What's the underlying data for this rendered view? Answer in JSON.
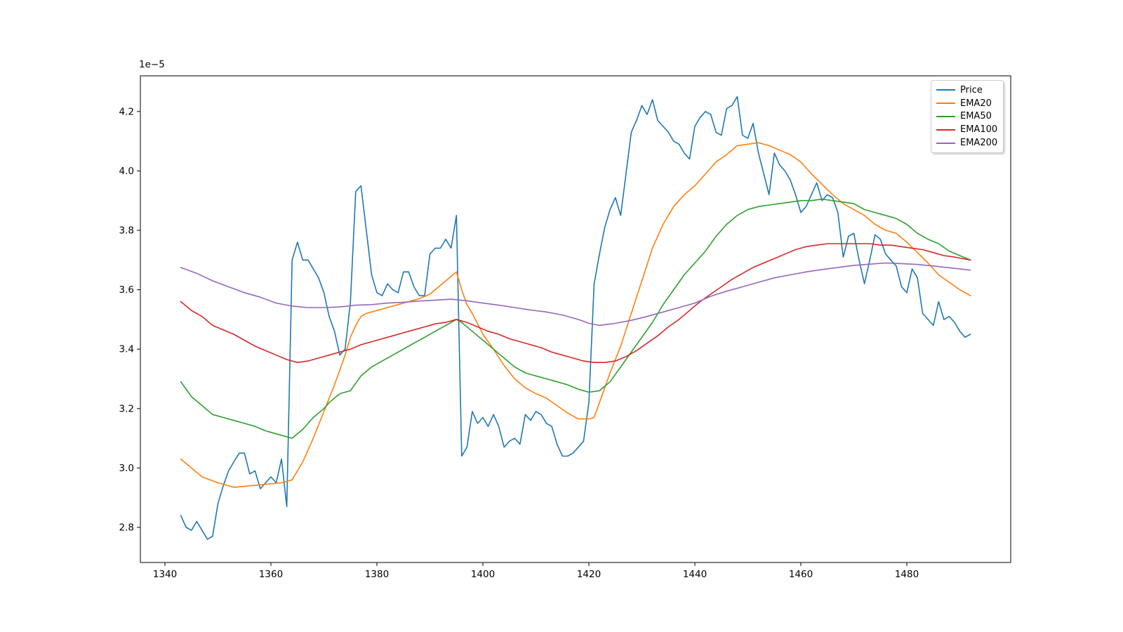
{
  "figure": {
    "background": "#ffffff"
  },
  "axes": {
    "offset_label": "1e−5",
    "x_ticks": [
      "1340",
      "1360",
      "1380",
      "1400",
      "1420",
      "1440",
      "1460",
      "1480"
    ],
    "x_tick_values": [
      1340,
      1360,
      1380,
      1400,
      1420,
      1440,
      1460,
      1480
    ],
    "y_ticks": [
      "2.8",
      "3.0",
      "3.2",
      "3.4",
      "3.6",
      "3.8",
      "4.0",
      "4.2"
    ],
    "y_tick_values": [
      2.8,
      3.0,
      3.2,
      3.4,
      3.6,
      3.8,
      4.0,
      4.2
    ]
  },
  "legend": {
    "entries": [
      {
        "label": "Price",
        "color": "#1f77b4"
      },
      {
        "label": "EMA20",
        "color": "#ff7f0e"
      },
      {
        "label": "EMA50",
        "color": "#2ca02c"
      },
      {
        "label": "EMA100",
        "color": "#d62728"
      },
      {
        "label": "EMA200",
        "color": "#9467bd"
      }
    ]
  },
  "chart_data": {
    "type": "line",
    "title": "",
    "xlabel": "",
    "ylabel": "",
    "y_unit_note": "values are in units of 1e-5 (axis offset label)",
    "xlim": [
      1335.5,
      1499.5
    ],
    "ylim": [
      2.69,
      4.32
    ],
    "grid": false,
    "legend_position": "upper right",
    "series": [
      {
        "name": "Price",
        "color": "#1f77b4",
        "x_start": 1343,
        "x_step": 1,
        "values": [
          2.84,
          2.8,
          2.79,
          2.82,
          2.79,
          2.76,
          2.77,
          2.88,
          2.94,
          2.99,
          3.02,
          3.05,
          3.05,
          2.98,
          2.99,
          2.93,
          2.95,
          2.97,
          2.95,
          3.03,
          2.87,
          3.7,
          3.76,
          3.7,
          3.7,
          3.67,
          3.64,
          3.59,
          3.51,
          3.46,
          3.38,
          3.4,
          3.56,
          3.93,
          3.95,
          3.8,
          3.65,
          3.59,
          3.58,
          3.62,
          3.6,
          3.59,
          3.66,
          3.66,
          3.61,
          3.58,
          3.58,
          3.72,
          3.74,
          3.74,
          3.77,
          3.74,
          3.85,
          3.04,
          3.07,
          3.19,
          3.15,
          3.17,
          3.14,
          3.18,
          3.14,
          3.07,
          3.09,
          3.1,
          3.08,
          3.18,
          3.16,
          3.19,
          3.18,
          3.15,
          3.14,
          3.08,
          3.04,
          3.04,
          3.05,
          3.07,
          3.09,
          3.22,
          3.62,
          3.72,
          3.81,
          3.87,
          3.91,
          3.85,
          3.99,
          4.13,
          4.17,
          4.22,
          4.19,
          4.24,
          4.17,
          4.15,
          4.13,
          4.1,
          4.09,
          4.06,
          4.04,
          4.15,
          4.18,
          4.2,
          4.19,
          4.13,
          4.12,
          4.21,
          4.22,
          4.25,
          4.12,
          4.11,
          4.16,
          4.06,
          3.99,
          3.92,
          4.06,
          4.02,
          4.0,
          3.97,
          3.92,
          3.86,
          3.88,
          3.92,
          3.96,
          3.9,
          3.92,
          3.91,
          3.86,
          3.71,
          3.78,
          3.79,
          3.7,
          3.62,
          3.7,
          3.785,
          3.77,
          3.72,
          3.7,
          3.68,
          3.61,
          3.59,
          3.67,
          3.64,
          3.52,
          3.5,
          3.48,
          3.56,
          3.5,
          3.51,
          3.49,
          3.46,
          3.44,
          3.45
        ]
      },
      {
        "name": "EMA20",
        "color": "#ff7f0e",
        "x": [
          1343,
          1345,
          1347,
          1350,
          1353,
          1356,
          1359,
          1362,
          1364,
          1366,
          1368,
          1370,
          1372,
          1374,
          1375,
          1376,
          1377,
          1378,
          1380,
          1382,
          1384,
          1386,
          1388,
          1390,
          1392,
          1394,
          1395,
          1396,
          1397,
          1398,
          1400,
          1402,
          1404,
          1406,
          1408,
          1410,
          1412,
          1414,
          1416,
          1418,
          1420,
          1421,
          1422,
          1424,
          1426,
          1428,
          1430,
          1432,
          1434,
          1436,
          1438,
          1440,
          1442,
          1444,
          1446,
          1448,
          1450,
          1452,
          1454,
          1456,
          1458,
          1460,
          1462,
          1464,
          1466,
          1468,
          1470,
          1472,
          1474,
          1476,
          1478,
          1480,
          1482,
          1484,
          1486,
          1488,
          1490,
          1492
        ],
        "values": [
          3.03,
          3.0,
          2.97,
          2.95,
          2.935,
          2.94,
          2.945,
          2.95,
          2.96,
          3.02,
          3.1,
          3.19,
          3.28,
          3.38,
          3.44,
          3.48,
          3.51,
          3.52,
          3.53,
          3.54,
          3.55,
          3.56,
          3.57,
          3.585,
          3.615,
          3.645,
          3.66,
          3.6,
          3.55,
          3.52,
          3.45,
          3.4,
          3.345,
          3.3,
          3.27,
          3.25,
          3.235,
          3.21,
          3.185,
          3.165,
          3.165,
          3.17,
          3.22,
          3.32,
          3.41,
          3.52,
          3.63,
          3.74,
          3.82,
          3.88,
          3.92,
          3.95,
          3.99,
          4.03,
          4.055,
          4.085,
          4.09,
          4.095,
          4.085,
          4.07,
          4.055,
          4.03,
          3.99,
          3.955,
          3.92,
          3.89,
          3.87,
          3.85,
          3.82,
          3.8,
          3.79,
          3.76,
          3.725,
          3.69,
          3.65,
          3.625,
          3.6,
          3.58
        ]
      },
      {
        "name": "EMA50",
        "color": "#2ca02c",
        "x": [
          1343,
          1345,
          1347,
          1349,
          1351,
          1353,
          1355,
          1357,
          1359,
          1361,
          1363,
          1364,
          1366,
          1368,
          1370,
          1371,
          1373,
          1375,
          1377,
          1379,
          1381,
          1383,
          1385,
          1387,
          1389,
          1391,
          1393,
          1395,
          1396,
          1398,
          1400,
          1402,
          1404,
          1406,
          1408,
          1410,
          1412,
          1414,
          1416,
          1418,
          1420,
          1422,
          1424,
          1426,
          1428,
          1430,
          1432,
          1434,
          1436,
          1438,
          1440,
          1442,
          1444,
          1446,
          1448,
          1450,
          1452,
          1454,
          1456,
          1458,
          1460,
          1462,
          1464,
          1466,
          1468,
          1470,
          1472,
          1474,
          1476,
          1478,
          1480,
          1482,
          1484,
          1486,
          1488,
          1490,
          1492
        ],
        "values": [
          3.29,
          3.24,
          3.21,
          3.18,
          3.17,
          3.16,
          3.15,
          3.14,
          3.125,
          3.115,
          3.105,
          3.1,
          3.13,
          3.17,
          3.2,
          3.22,
          3.25,
          3.26,
          3.31,
          3.34,
          3.36,
          3.38,
          3.4,
          3.42,
          3.44,
          3.46,
          3.48,
          3.5,
          3.49,
          3.46,
          3.43,
          3.4,
          3.37,
          3.34,
          3.32,
          3.31,
          3.3,
          3.29,
          3.28,
          3.265,
          3.255,
          3.26,
          3.29,
          3.34,
          3.39,
          3.44,
          3.49,
          3.55,
          3.6,
          3.65,
          3.69,
          3.73,
          3.78,
          3.82,
          3.85,
          3.87,
          3.88,
          3.885,
          3.89,
          3.895,
          3.9,
          3.9,
          3.905,
          3.9,
          3.895,
          3.89,
          3.87,
          3.86,
          3.85,
          3.84,
          3.82,
          3.79,
          3.77,
          3.755,
          3.73,
          3.715,
          3.7
        ]
      },
      {
        "name": "EMA100",
        "color": "#d62728",
        "x": [
          1343,
          1345,
          1347,
          1349,
          1351,
          1353,
          1355,
          1357,
          1359,
          1361,
          1363,
          1365,
          1367,
          1369,
          1371,
          1373,
          1375,
          1377,
          1379,
          1381,
          1383,
          1385,
          1387,
          1389,
          1391,
          1393,
          1395,
          1397,
          1399,
          1401,
          1403,
          1405,
          1407,
          1409,
          1411,
          1413,
          1415,
          1417,
          1419,
          1421,
          1423,
          1425,
          1427,
          1429,
          1431,
          1433,
          1435,
          1437,
          1439,
          1441,
          1443,
          1445,
          1447,
          1449,
          1451,
          1453,
          1455,
          1457,
          1459,
          1461,
          1463,
          1465,
          1467,
          1469,
          1471,
          1473,
          1475,
          1477,
          1479,
          1481,
          1483,
          1485,
          1487,
          1489,
          1492
        ],
        "values": [
          3.56,
          3.53,
          3.51,
          3.48,
          3.465,
          3.45,
          3.43,
          3.41,
          3.395,
          3.38,
          3.365,
          3.355,
          3.36,
          3.37,
          3.38,
          3.39,
          3.4,
          3.415,
          3.425,
          3.435,
          3.445,
          3.455,
          3.465,
          3.475,
          3.485,
          3.49,
          3.5,
          3.49,
          3.475,
          3.46,
          3.45,
          3.435,
          3.425,
          3.415,
          3.405,
          3.39,
          3.38,
          3.37,
          3.36,
          3.355,
          3.355,
          3.36,
          3.375,
          3.395,
          3.42,
          3.445,
          3.475,
          3.5,
          3.53,
          3.56,
          3.585,
          3.61,
          3.635,
          3.655,
          3.675,
          3.69,
          3.705,
          3.72,
          3.735,
          3.745,
          3.75,
          3.755,
          3.755,
          3.755,
          3.755,
          3.755,
          3.75,
          3.75,
          3.745,
          3.74,
          3.735,
          3.725,
          3.715,
          3.71,
          3.7
        ]
      },
      {
        "name": "EMA200",
        "color": "#9467bd",
        "x": [
          1343,
          1346,
          1349,
          1352,
          1355,
          1358,
          1361,
          1364,
          1367,
          1370,
          1373,
          1376,
          1379,
          1382,
          1385,
          1388,
          1391,
          1394,
          1397,
          1400,
          1403,
          1406,
          1409,
          1412,
          1415,
          1418,
          1420,
          1422,
          1425,
          1428,
          1431,
          1434,
          1437,
          1440,
          1443,
          1446,
          1449,
          1452,
          1455,
          1458,
          1461,
          1464,
          1467,
          1470,
          1473,
          1476,
          1479,
          1482,
          1485,
          1488,
          1492
        ],
        "values": [
          3.675,
          3.655,
          3.63,
          3.61,
          3.59,
          3.575,
          3.555,
          3.545,
          3.54,
          3.54,
          3.542,
          3.548,
          3.55,
          3.555,
          3.558,
          3.562,
          3.565,
          3.568,
          3.563,
          3.555,
          3.548,
          3.54,
          3.532,
          3.525,
          3.515,
          3.5,
          3.487,
          3.48,
          3.487,
          3.497,
          3.51,
          3.525,
          3.54,
          3.555,
          3.578,
          3.595,
          3.61,
          3.625,
          3.64,
          3.65,
          3.66,
          3.668,
          3.675,
          3.682,
          3.686,
          3.69,
          3.688,
          3.685,
          3.68,
          3.674,
          3.666
        ]
      }
    ]
  }
}
